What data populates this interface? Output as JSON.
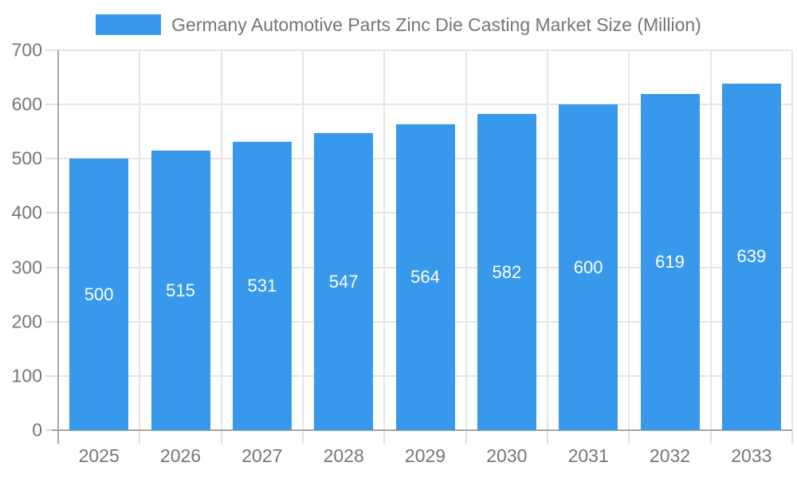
{
  "legend": {
    "label": "Germany Automotive Parts Zinc Die Casting Market Size (Million)"
  },
  "chart_data": {
    "type": "bar",
    "title": "Germany Automotive Parts Zinc Die Casting Market Size (Million)",
    "categories": [
      "2025",
      "2026",
      "2027",
      "2028",
      "2029",
      "2030",
      "2031",
      "2032",
      "2033"
    ],
    "values": [
      500,
      515,
      531,
      547,
      564,
      582,
      600,
      619,
      639
    ],
    "xlabel": "",
    "ylabel": "",
    "ylim": [
      0,
      700
    ],
    "yticks": [
      0,
      100,
      200,
      300,
      400,
      500,
      600,
      700
    ],
    "grid": true,
    "legend_position": "top",
    "colors": {
      "bar": "#3899EC",
      "bar_value_label": "#ffffff",
      "axis_text": "#757575",
      "axis_line": "#a6a6a6",
      "gridline": "#e6e6e6",
      "tick": "#e0e0e0",
      "background": "#ffffff"
    }
  }
}
